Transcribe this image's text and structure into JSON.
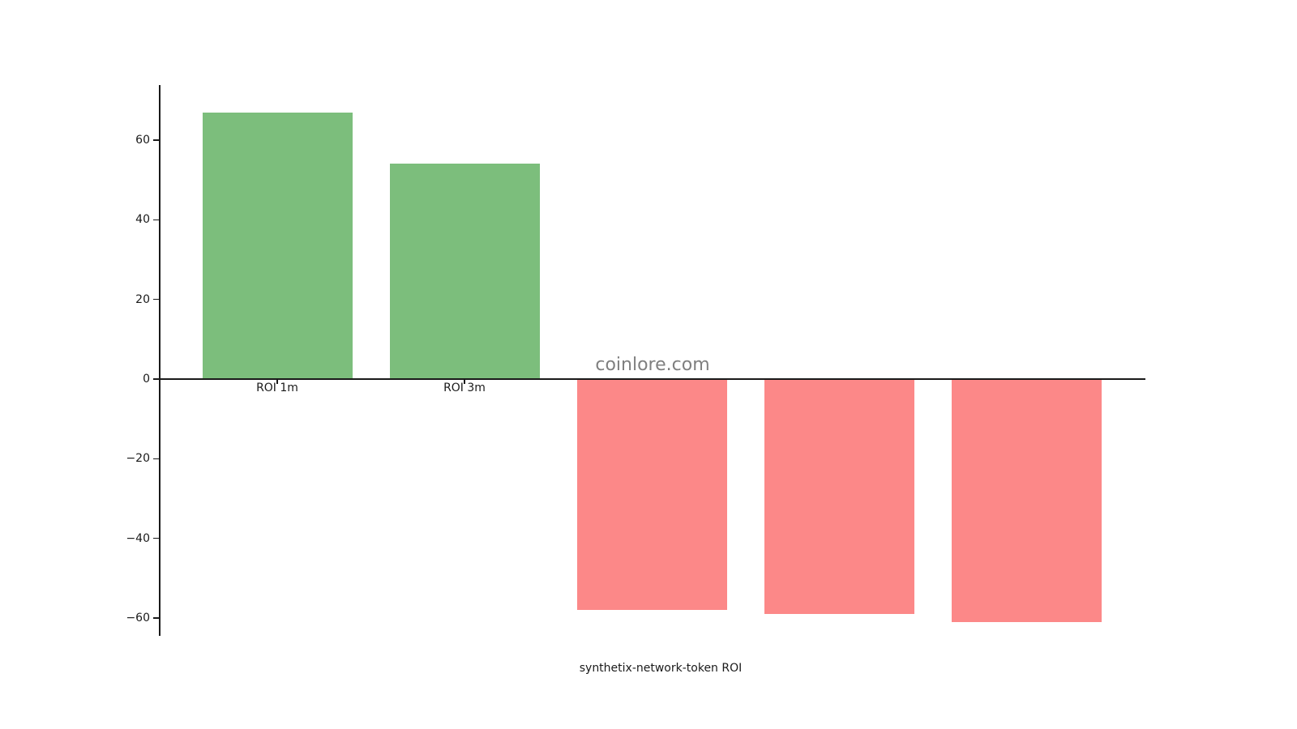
{
  "chart_data": {
    "type": "bar",
    "title": "synthetix-network-token ROI",
    "watermark": "coinlore.com",
    "categories": [
      "ROI 1m",
      "ROI 3m",
      "",
      "",
      ""
    ],
    "values": [
      67,
      54,
      -58,
      -59,
      -61
    ],
    "ylim": [
      -64.5,
      73.8
    ],
    "y_tick_values": [
      60,
      40,
      20,
      0,
      -20,
      -40,
      -60
    ],
    "y_tick_labels": [
      "60",
      "40",
      "20",
      "0",
      "−20",
      "−40",
      "−60"
    ],
    "grid": false,
    "legend": false,
    "xlabel": "",
    "ylabel": "",
    "colors": {
      "positive": "#7cbe7c",
      "negative": "#fc8888",
      "watermark": "#7f7f7f",
      "axis": "#1a1a1a"
    }
  }
}
